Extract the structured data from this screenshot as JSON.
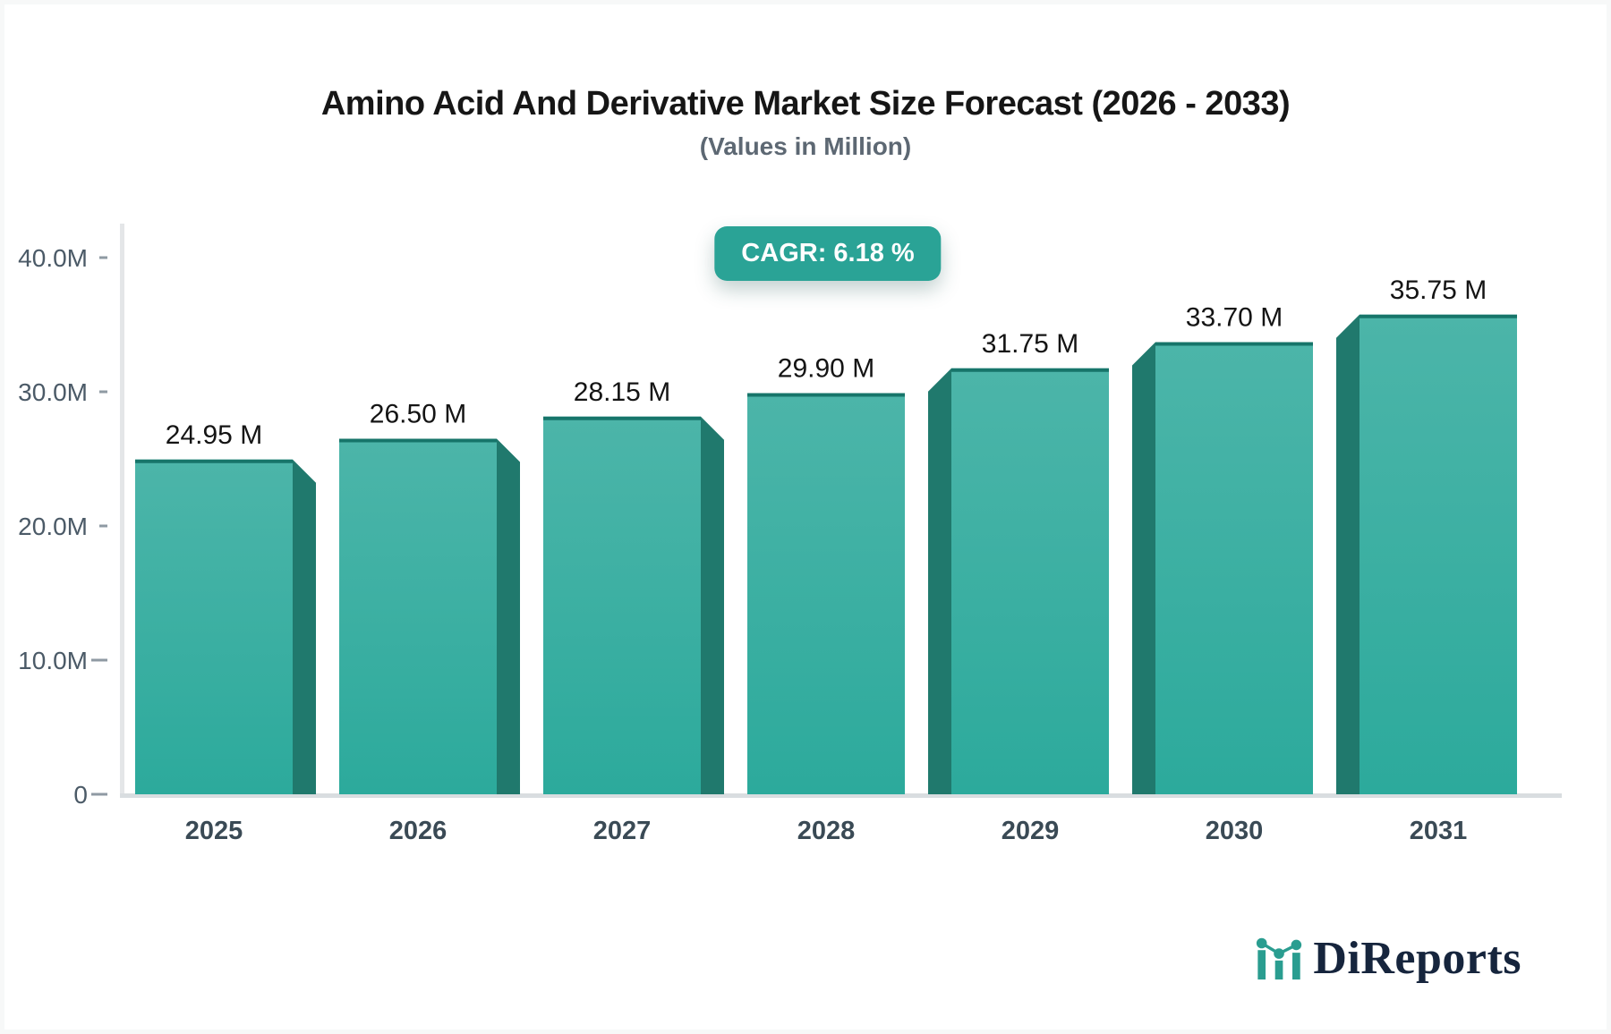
{
  "header": {
    "title": "Amino Acid And Derivative Market Size Forecast (2026 - 2033)",
    "subtitle": "(Values in Million)",
    "badge_label": "CAGR: 6.18 %"
  },
  "logo": {
    "text": "DiReports"
  },
  "chart_data": {
    "type": "bar",
    "title": "Amino Acid And Derivative Market Size Forecast (2026 - 2033)",
    "subtitle": "(Values in Million)",
    "cagr": "6.18 %",
    "categories": [
      "2025",
      "2026",
      "2027",
      "2028",
      "2029",
      "2030",
      "2031"
    ],
    "values": [
      24.95,
      26.5,
      28.15,
      29.9,
      31.75,
      33.7,
      35.75
    ],
    "value_labels": [
      "24.95 M",
      "26.50 M",
      "28.15 M",
      "29.90 M",
      "31.75 M",
      "33.70 M",
      "35.75 M"
    ],
    "xlabel": "",
    "ylabel": "",
    "ylim": [
      0,
      40
    ],
    "y_ticks": [
      {
        "value": 40,
        "label": "40.0M"
      },
      {
        "value": 30,
        "label": "30.0M"
      },
      {
        "value": 20,
        "label": "20.0M"
      },
      {
        "value": 10,
        "label": "10.0M"
      },
      {
        "value": 0,
        "label": "0"
      }
    ],
    "grid": false,
    "legend": false,
    "bar_style": "3d-center-perspective",
    "colors": {
      "bar_face_top": "#4cb5a9",
      "bar_face_bottom": "#2caa9c",
      "bar_side": "#20796d",
      "bar_top_edge": "#17756a",
      "axis_spine": "#e4e6e8",
      "baseline": "#d9dde0",
      "tick_dash": "#8f9aa3",
      "tick_label": "#4b5a67",
      "category_label": "#3a4a55",
      "value_label": "#141414",
      "badge_bg": "#2aa396",
      "logo_teal": "#2a9d90",
      "logo_navy": "#16253d"
    }
  }
}
